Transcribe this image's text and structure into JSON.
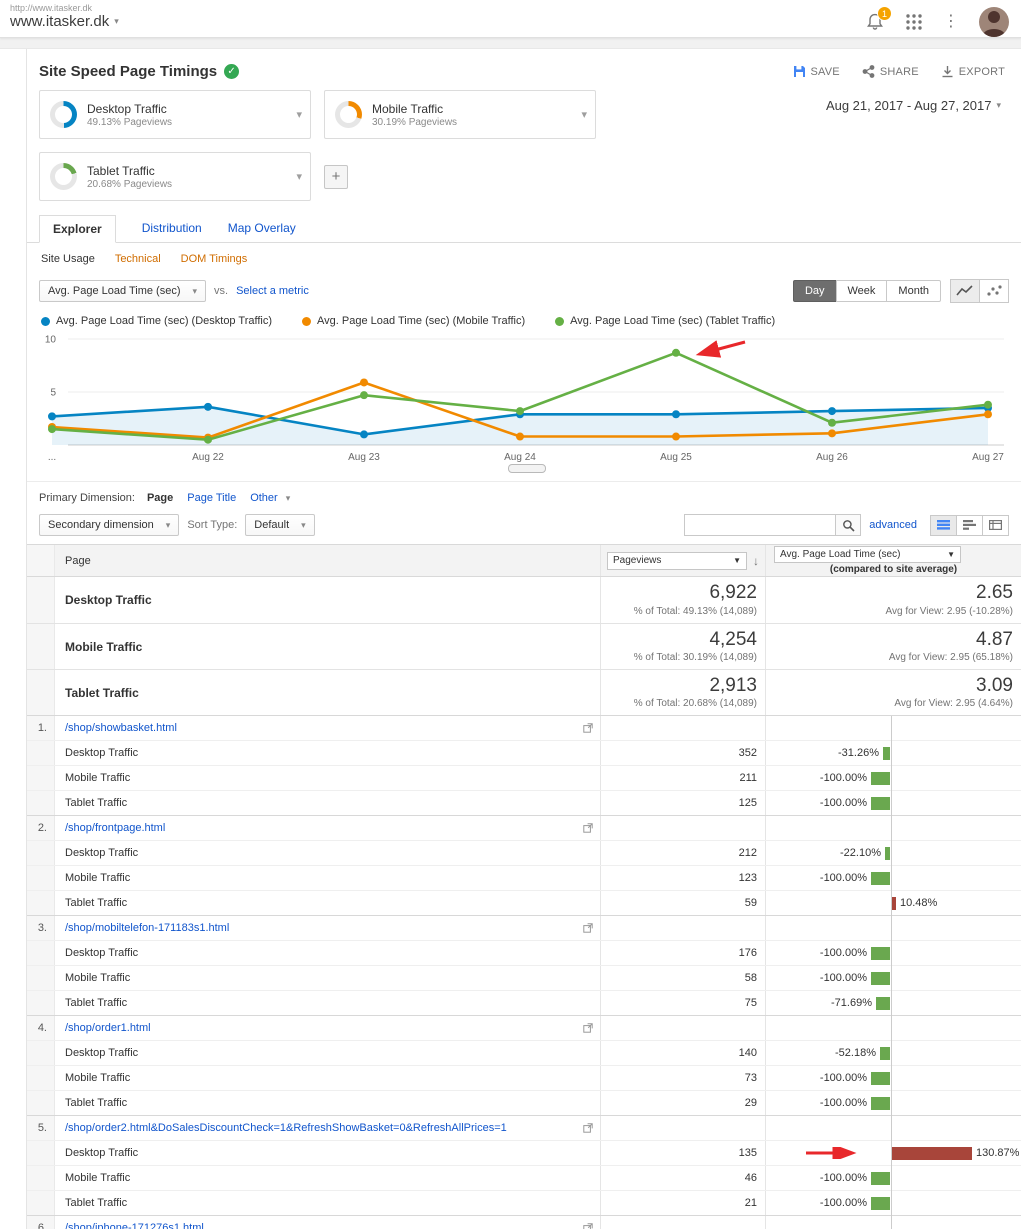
{
  "topbar": {
    "url": "http://www.itasker.dk",
    "account": "www.itasker.dk",
    "badge": "1"
  },
  "header": {
    "title": "Site Speed Page Timings",
    "actions": [
      {
        "label": "SAVE"
      },
      {
        "label": "SHARE"
      },
      {
        "label": "EXPORT"
      }
    ]
  },
  "segments": [
    {
      "name": "Desktop Traffic",
      "sub": "49.13% Pageviews",
      "pct": 49.13,
      "color": "#0584c3"
    },
    {
      "name": "Mobile Traffic",
      "sub": "30.19% Pageviews",
      "pct": 30.19,
      "color": "#f18a00"
    },
    {
      "name": "Tablet Traffic",
      "sub": "20.68% Pageviews",
      "pct": 20.68,
      "color": "#69a74e"
    }
  ],
  "add_segment": "+",
  "date_range": "Aug 21, 2017 - Aug 27, 2017",
  "tabs": [
    {
      "label": "Explorer",
      "active": true
    },
    {
      "label": "Distribution"
    },
    {
      "label": "Map Overlay"
    }
  ],
  "subtabs": [
    {
      "label": "Site Usage",
      "active": true
    },
    {
      "label": "Technical"
    },
    {
      "label": "DOM Timings"
    }
  ],
  "metric_bar": {
    "metric_select": "Avg. Page Load Time (sec)",
    "vs": "vs.",
    "select_metric": "Select a metric",
    "granularity": [
      {
        "label": "Day",
        "active": true
      },
      {
        "label": "Week"
      },
      {
        "label": "Month"
      }
    ]
  },
  "chart_data": {
    "type": "line",
    "x": [
      "...",
      "Aug 22",
      "Aug 23",
      "Aug 24",
      "Aug 25",
      "Aug 26",
      "Aug 27"
    ],
    "ylim": [
      0,
      10
    ],
    "yticks": [
      5,
      10
    ],
    "series": [
      {
        "name": "Avg. Page Load Time (sec) (Desktop Traffic)",
        "color": "#0584c3",
        "fill": true,
        "values": [
          2.7,
          3.6,
          1.0,
          2.9,
          2.9,
          3.2,
          3.5
        ]
      },
      {
        "name": "Avg. Page Load Time (sec) (Mobile Traffic)",
        "color": "#f18a00",
        "values": [
          1.7,
          0.7,
          5.9,
          0.8,
          0.8,
          1.1,
          2.9
        ]
      },
      {
        "name": "Avg. Page Load Time (sec) (Tablet Traffic)",
        "color": "#65b045",
        "values": [
          1.5,
          0.5,
          4.7,
          3.2,
          8.7,
          2.1,
          3.8
        ]
      }
    ]
  },
  "primary_dimension": {
    "label": "Primary Dimension:",
    "options": [
      {
        "label": "Page",
        "active": true
      },
      {
        "label": "Page Title"
      },
      {
        "label": "Other",
        "caret": true
      }
    ]
  },
  "toolbar": {
    "secondary": "Secondary dimension",
    "sort_label": "Sort Type:",
    "sort_value": "Default",
    "search_value": "",
    "advanced": "advanced"
  },
  "table": {
    "col_page": "Page",
    "col_pageviews": "Pageviews",
    "col_metric": "Avg. Page Load Time (sec)",
    "col_metric_sub": "(compared to site average)",
    "summary": [
      {
        "label": "Desktop Traffic",
        "pageviews": "6,922",
        "pageviews_sub": "% of Total: 49.13% (14,089)",
        "metric": "2.65",
        "metric_sub": "Avg for View: 2.95 (-10.28%)"
      },
      {
        "label": "Mobile Traffic",
        "pageviews": "4,254",
        "pageviews_sub": "% of Total: 30.19% (14,089)",
        "metric": "4.87",
        "metric_sub": "Avg for View: 2.95 (65.18%)"
      },
      {
        "label": "Tablet Traffic",
        "pageviews": "2,913",
        "pageviews_sub": "% of Total: 20.68% (14,089)",
        "metric": "3.09",
        "metric_sub": "Avg for View: 2.95 (4.64%)"
      }
    ],
    "rows": [
      {
        "num": "1.",
        "page": "/shop/showbasket.html",
        "children": [
          {
            "label": "Desktop Traffic",
            "pageviews": "352",
            "delta": "-31.26%",
            "dir": "neg",
            "w": 7
          },
          {
            "label": "Mobile Traffic",
            "pageviews": "211",
            "delta": "-100.00%",
            "dir": "neg",
            "w": 19
          },
          {
            "label": "Tablet Traffic",
            "pageviews": "125",
            "delta": "-100.00%",
            "dir": "neg",
            "w": 19
          }
        ]
      },
      {
        "num": "2.",
        "page": "/shop/frontpage.html",
        "children": [
          {
            "label": "Desktop Traffic",
            "pageviews": "212",
            "delta": "-22.10%",
            "dir": "neg",
            "w": 5
          },
          {
            "label": "Mobile Traffic",
            "pageviews": "123",
            "delta": "-100.00%",
            "dir": "neg",
            "w": 19
          },
          {
            "label": "Tablet Traffic",
            "pageviews": "59",
            "delta": "10.48%",
            "dir": "pos",
            "w": 4
          }
        ]
      },
      {
        "num": "3.",
        "page": "/shop/mobiltelefon-171183s1.html",
        "children": [
          {
            "label": "Desktop Traffic",
            "pageviews": "176",
            "delta": "-100.00%",
            "dir": "neg",
            "w": 19
          },
          {
            "label": "Mobile Traffic",
            "pageviews": "58",
            "delta": "-100.00%",
            "dir": "neg",
            "w": 19
          },
          {
            "label": "Tablet Traffic",
            "pageviews": "75",
            "delta": "-71.69%",
            "dir": "neg",
            "w": 14
          }
        ]
      },
      {
        "num": "4.",
        "page": "/shop/order1.html",
        "children": [
          {
            "label": "Desktop Traffic",
            "pageviews": "140",
            "delta": "-52.18%",
            "dir": "neg",
            "w": 10
          },
          {
            "label": "Mobile Traffic",
            "pageviews": "73",
            "delta": "-100.00%",
            "dir": "neg",
            "w": 19
          },
          {
            "label": "Tablet Traffic",
            "pageviews": "29",
            "delta": "-100.00%",
            "dir": "neg",
            "w": 19
          }
        ]
      },
      {
        "num": "5.",
        "page": "/shop/order2.html&DoSalesDiscountCheck=1&RefreshShowBasket=0&RefreshAllPrices=1",
        "children": [
          {
            "label": "Desktop Traffic",
            "pageviews": "135",
            "delta": "130.87%",
            "dir": "pos",
            "w": 80,
            "arrow": true
          },
          {
            "label": "Mobile Traffic",
            "pageviews": "46",
            "delta": "-100.00%",
            "dir": "neg",
            "w": 19
          },
          {
            "label": "Tablet Traffic",
            "pageviews": "21",
            "delta": "-100.00%",
            "dir": "neg",
            "w": 19
          }
        ]
      },
      {
        "num": "6.",
        "page": "/shop/iphone-171276s1.html",
        "children": []
      }
    ]
  },
  "colors": {
    "bar_neg": "#6aa84f",
    "bar_pos": "#a8453a",
    "link": "#1155cc",
    "annotation": "#e8282b"
  }
}
